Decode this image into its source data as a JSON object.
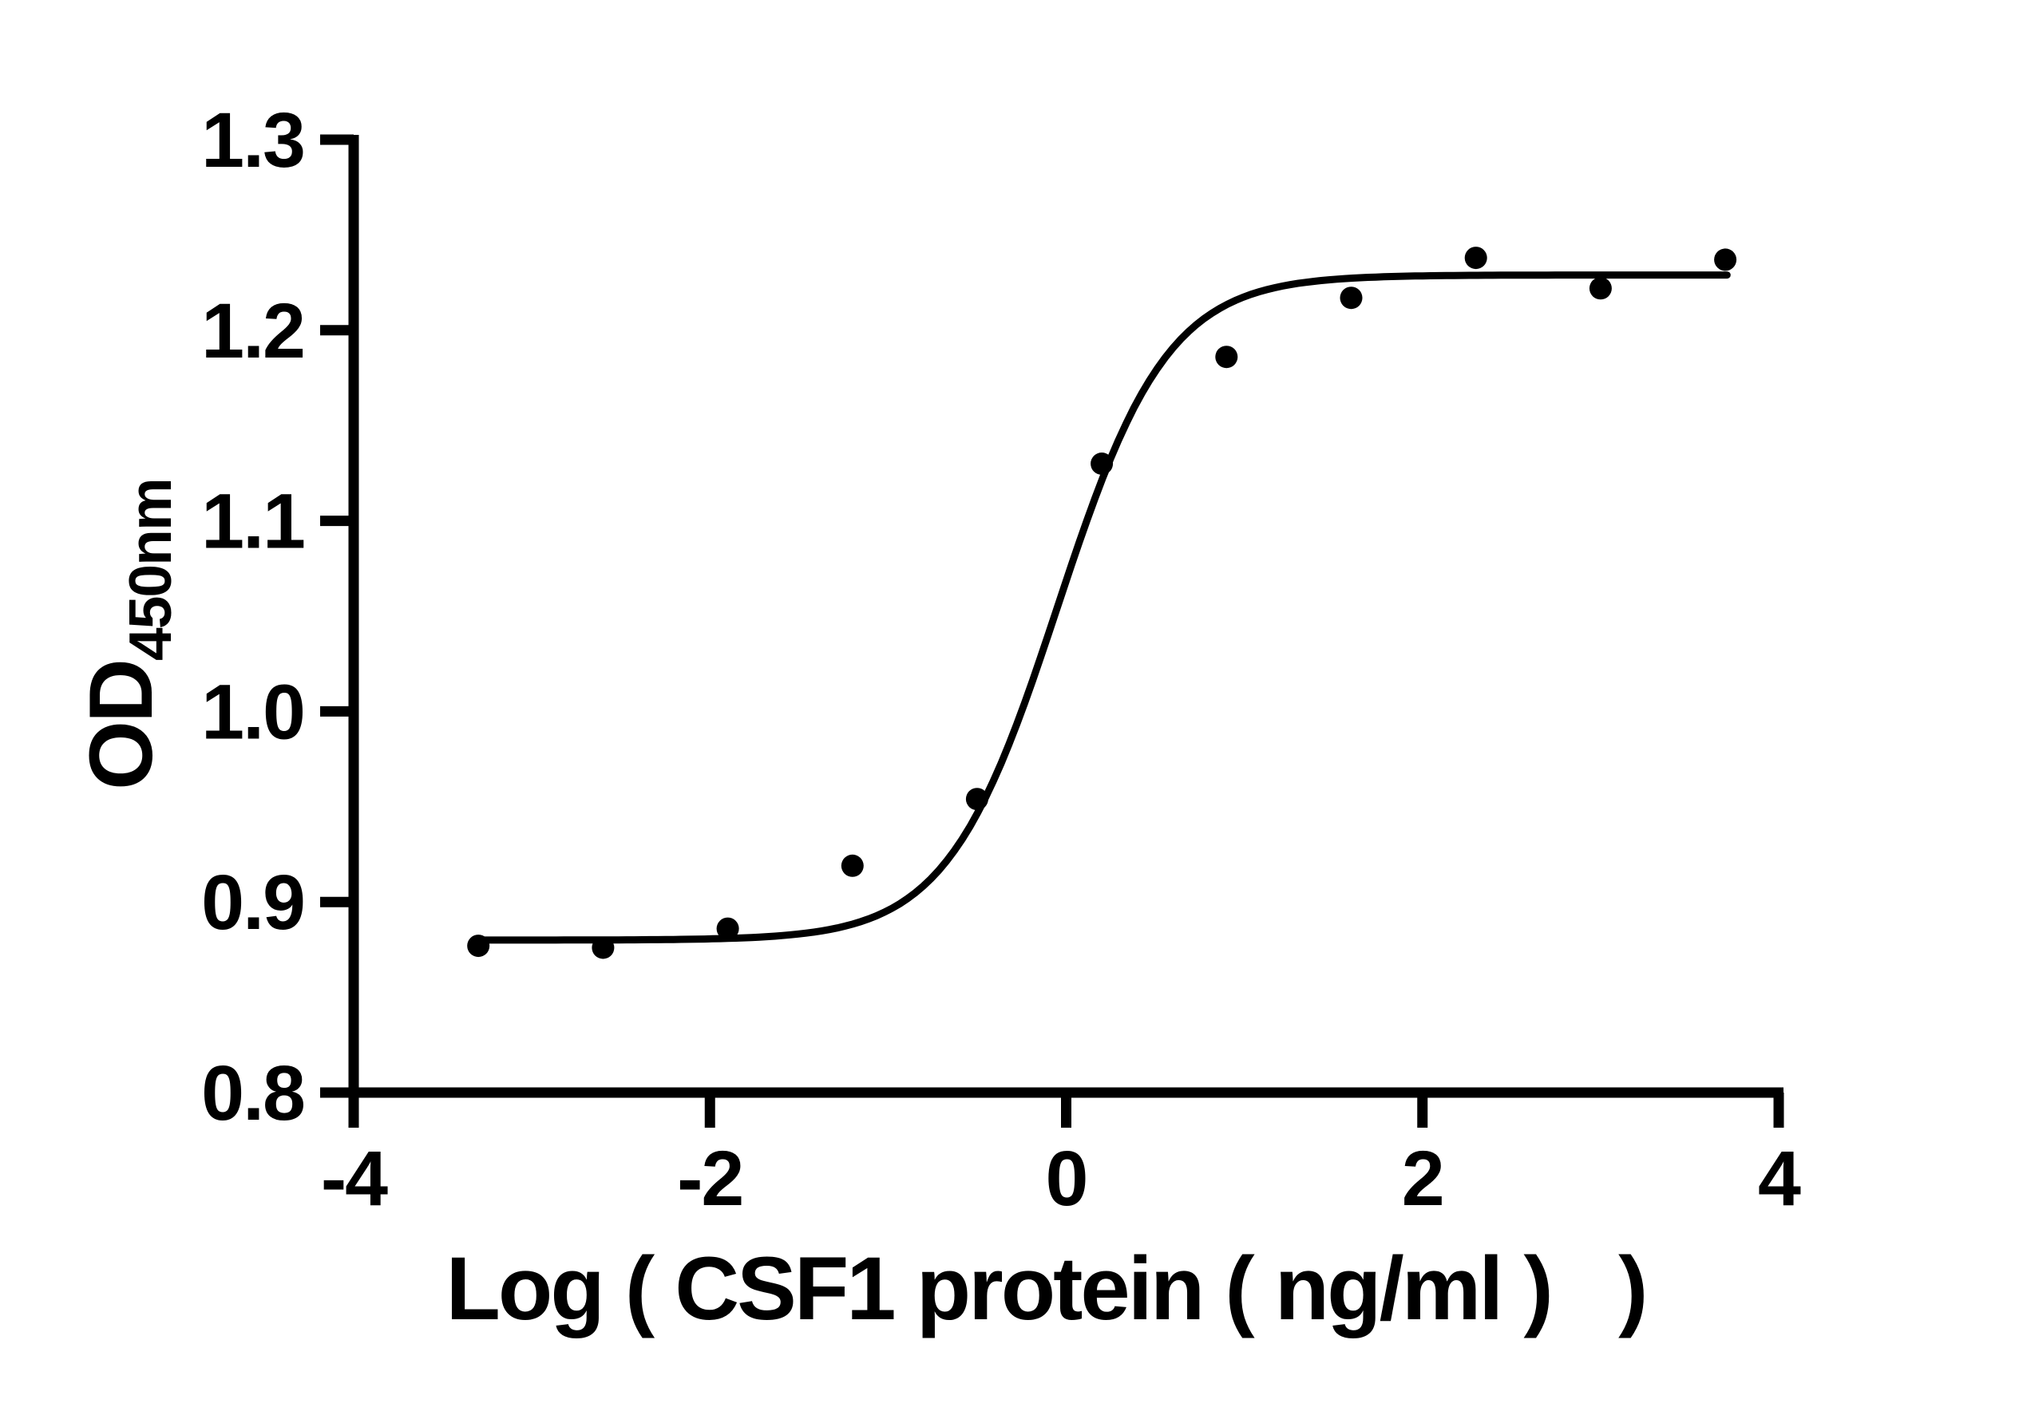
{
  "chart_data": {
    "type": "scatter",
    "title": "",
    "xlabel": "Log ( CSF1 protein ( ng/ml )   )",
    "ylabel_main": "OD",
    "ylabel_sub": "450nm",
    "xlim": [
      -4,
      4
    ],
    "ylim": [
      0.8,
      1.3
    ],
    "x_ticks": [
      -4,
      -2,
      0,
      2,
      4
    ],
    "x_tick_labels": [
      "-4",
      "-2",
      "0",
      "2",
      "4"
    ],
    "y_ticks": [
      0.8,
      0.9,
      1.0,
      1.1,
      1.2,
      1.3
    ],
    "y_tick_labels": [
      "0.8",
      "0.9",
      "1.0",
      "1.1",
      "1.2",
      "1.3"
    ],
    "grid": false,
    "legend": null,
    "marker_color": "#000000",
    "line_color": "#000000",
    "background_color": "#ffffff",
    "points": [
      {
        "x": -3.3,
        "y": 0.877
      },
      {
        "x": -2.6,
        "y": 0.876
      },
      {
        "x": -1.9,
        "y": 0.886
      },
      {
        "x": -1.2,
        "y": 0.919
      },
      {
        "x": -0.5,
        "y": 0.954
      },
      {
        "x": 0.2,
        "y": 1.13
      },
      {
        "x": 0.9,
        "y": 1.186
      },
      {
        "x": 1.6,
        "y": 1.217
      },
      {
        "x": 2.3,
        "y": 1.238
      },
      {
        "x": 3.0,
        "y": 1.222
      },
      {
        "x": 3.7,
        "y": 1.237
      }
    ],
    "fit_curve": {
      "model": "4PL sigmoidal",
      "bottom": 0.88,
      "top": 1.229,
      "log_ec50": -0.05,
      "hill_slope": 1.4,
      "x_start": -3.3,
      "x_end": 3.71
    }
  }
}
